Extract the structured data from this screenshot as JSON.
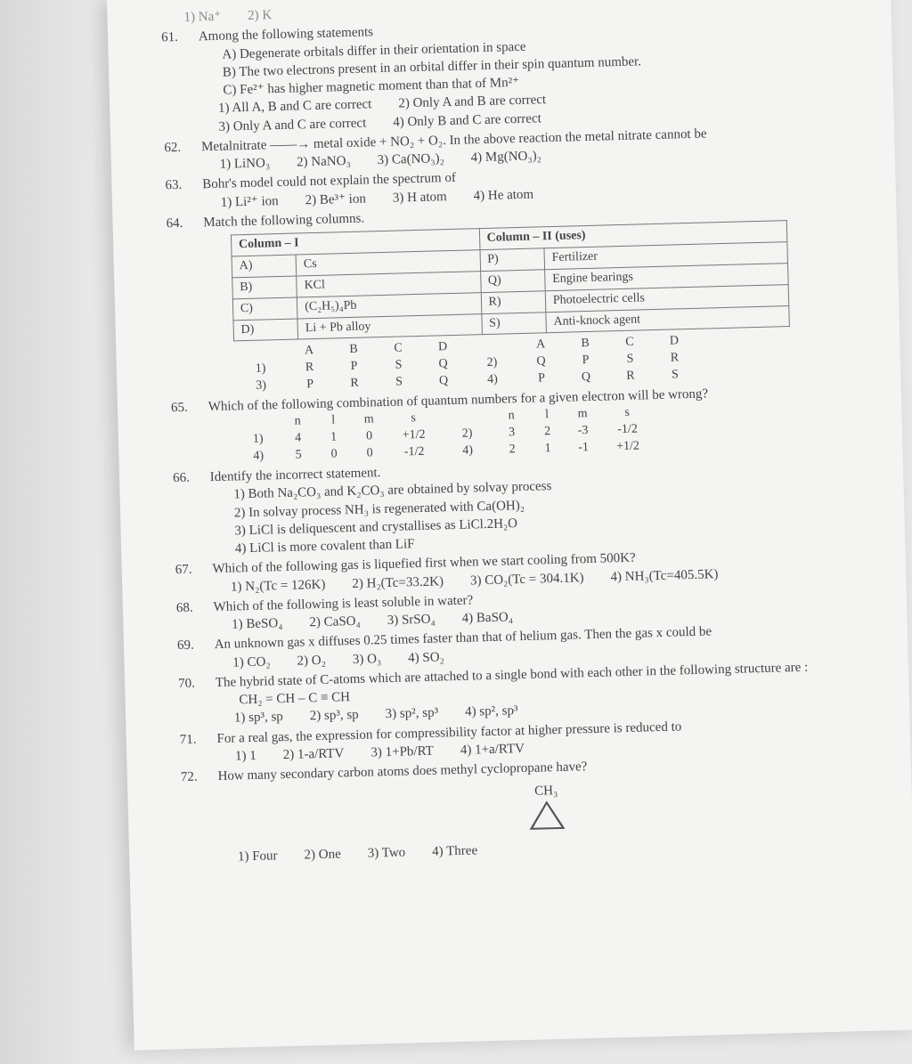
{
  "q60": {
    "opt1": "1) Na⁺",
    "opt2": "2) K"
  },
  "q61": {
    "num": "61.",
    "stem": "Among the following statements",
    "A": "A) Degenerate orbitals differ in their orientation in space",
    "B": "B) The two electrons present in an orbital differ in their spin quantum number.",
    "C": "C) Fe²⁺ has higher magnetic moment than that of Mn²⁺",
    "o1": "1) All A, B and C are correct",
    "o2": "2) Only A and B are correct",
    "o3": "3) Only A and C are correct",
    "o4": "4) Only B and C are correct"
  },
  "q62": {
    "num": "62.",
    "stem": "Metalnitrate ——→ metal oxide + NO₂ + O₂. In the above reaction the metal nitrate cannot be",
    "o1": "1) LiNO₃",
    "o2": "2) NaNO₃",
    "o3": "3) Ca(NO₃)₂",
    "o4": "4) Mg(NO₃)₂"
  },
  "q63": {
    "num": "63.",
    "stem": "Bohr's model could not explain the spectrum of",
    "o1": "1) Li²⁺ ion",
    "o2": "2) Be³⁺ ion",
    "o3": "3) H atom",
    "o4": "4) He atom"
  },
  "q64": {
    "num": "64.",
    "stem": "Match the following columns.",
    "h1": "Column – I",
    "h2": "Column – II (uses)",
    "rA": {
      "l": "A)",
      "c1": "Cs",
      "r": "P)",
      "c2": "Fertilizer"
    },
    "rB": {
      "l": "B)",
      "c1": "KCl",
      "r": "Q)",
      "c2": "Engine bearings"
    },
    "rC": {
      "l": "C)",
      "c1": "(C₂H₅)₄Pb",
      "r": "R)",
      "c2": "Photoelectric cells"
    },
    "rD": {
      "l": "D)",
      "c1": "Li + Pb alloy",
      "r": "S)",
      "c2": "Anti-knock agent"
    },
    "hdrA": "A",
    "hdrB": "B",
    "hdrC": "C",
    "hdrD": "D",
    "r1": {
      "n": "1)",
      "a": "R",
      "b": "P",
      "c": "S",
      "d": "Q"
    },
    "r2": {
      "n": "2)",
      "a": "Q",
      "b": "P",
      "c": "S",
      "d": "R"
    },
    "r3": {
      "n": "3)",
      "a": "P",
      "b": "R",
      "c": "S",
      "d": "Q"
    },
    "r4": {
      "n": "4)",
      "a": "P",
      "b": "Q",
      "c": "R",
      "d": "S"
    }
  },
  "q65": {
    "num": "65.",
    "stem": "Which of the following combination of quantum numbers for a given electron will be wrong?",
    "hn": "n",
    "hl": "l",
    "hm": "m",
    "hs": "s",
    "r1": {
      "n": "1)",
      "a": "4",
      "b": "1",
      "c": "0",
      "d": "+1/2"
    },
    "r2": {
      "n": "2)",
      "a": "3",
      "b": "2",
      "c": "-3",
      "d": "-1/2"
    },
    "r3": {
      "n": "4)",
      "a": "5",
      "b": "0",
      "c": "0",
      "d": "-1/2"
    },
    "r4": {
      "n": "4)",
      "a": "2",
      "b": "1",
      "c": "-1",
      "d": "+1/2"
    }
  },
  "q66": {
    "num": "66.",
    "stem": "Identify the incorrect statement.",
    "o1": "1) Both Na₂CO₃ and K₂CO₃ are obtained by solvay process",
    "o2": "2) In solvay process NH₃ is regenerated with Ca(OH)₂",
    "o3": "3) LiCl is deliquescent and crystallises as LiCl.2H₂O",
    "o4": "4) LiCl is more covalent than LiF"
  },
  "q67": {
    "num": "67.",
    "stem": "Which of the following gas is liquefied first when we start cooling from 500K?",
    "o1": "1) N₂(Tc = 126K)",
    "o2": "2) H₂(Tc=33.2K)",
    "o3": "3) CO₂(Tc = 304.1K)",
    "o4": "4) NH₃(Tc=405.5K)"
  },
  "q68": {
    "num": "68.",
    "stem": "Which of the following is least soluble in water?",
    "o1": "1) BeSO₄",
    "o2": "2) CaSO₄",
    "o3": "3) SrSO₄",
    "o4": "4) BaSO₄"
  },
  "q69": {
    "num": "69.",
    "stem": "An unknown gas x diffuses 0.25 times faster than that of helium gas. Then the gas x could be",
    "o1": "1) CO₂",
    "o2": "2) O₂",
    "o3": "3) O₃",
    "o4": "4) SO₂"
  },
  "q70": {
    "num": "70.",
    "stem": "The hybrid state of C-atoms which are attached to a single bond with each other in the following structure are :",
    "formula": "CH₂ = CH – C ≡ CH",
    "o1": "1) sp³, sp",
    "o2": "2) sp³, sp",
    "o3": "3) sp², sp³",
    "o4": "4) sp², sp³"
  },
  "q71": {
    "num": "71.",
    "stem": "For a real gas, the expression for compressibility factor at higher pressure is reduced to",
    "o1": "1) 1",
    "o2": "2) 1-a/RTV",
    "o3": "3) 1+Pb/RT",
    "o4": "4) 1+a/RTV"
  },
  "q72": {
    "num": "72.",
    "stem": "How many secondary carbon atoms does methyl cyclopropane have?",
    "label": "CH₃",
    "o1": "1) Four",
    "o2": "2) One",
    "o3": "3) Two",
    "o4": "4) Three"
  }
}
